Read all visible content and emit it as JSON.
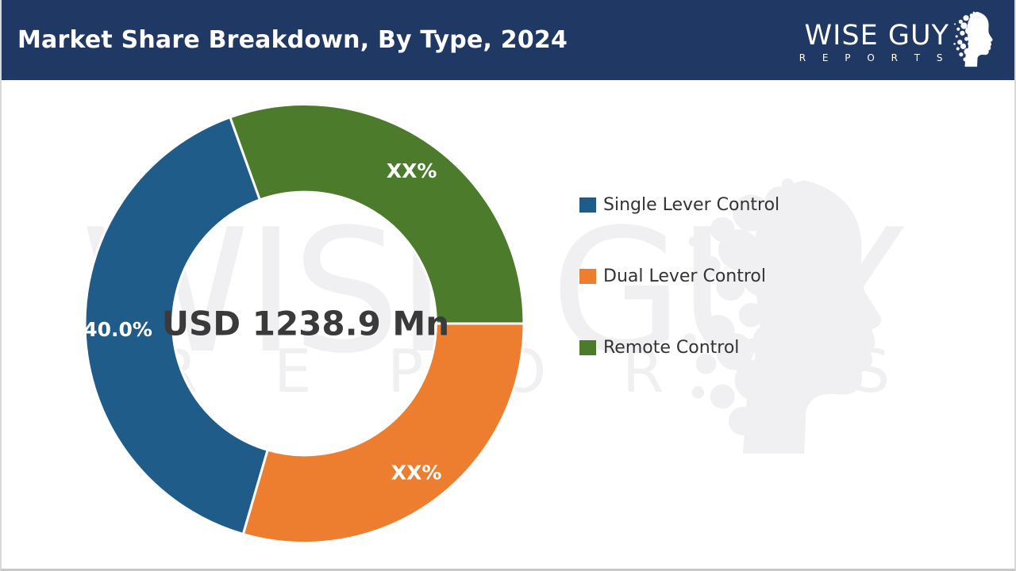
{
  "header": {
    "title": "Market Share Breakdown, By Type, 2024",
    "bg_color": "#203864",
    "logo": {
      "line1": "WISE GUY",
      "line2": "R E P O R T S",
      "face_icon": "face-profile-dots"
    }
  },
  "watermark": {
    "line1": "WISE GUY",
    "line2": "R E P O R T S",
    "color": "#f0f0f2"
  },
  "chart_data": {
    "type": "pie",
    "subtype": "donut",
    "center_label": "USD 1238.9 Mn",
    "start_angle_deg": 0,
    "direction": "counterclockwise",
    "inner_radius_ratio": 0.6,
    "label_radius_ratio": 0.85,
    "segments": [
      {
        "label": "Remote Control",
        "value": 30.5,
        "display_pct": "XX%",
        "color": "#4b7b2b"
      },
      {
        "label": "Single Lever Control",
        "value": 40.0,
        "display_pct": "40.0%",
        "color": "#205c8a"
      },
      {
        "label": "Dual Lever Control",
        "value": 29.5,
        "display_pct": "XX%",
        "color": "#ed7d2f"
      }
    ],
    "legend": [
      {
        "label": "Single Lever Control",
        "color": "#205c8a"
      },
      {
        "label": "Dual Lever Control",
        "color": "#ed7d2f"
      },
      {
        "label": "Remote Control",
        "color": "#4b7b2b"
      }
    ],
    "legend_position": "right",
    "slice_border_color": "#ffffff"
  },
  "colors": {
    "header_bg": "#203864",
    "page_bg": "#ffffff",
    "center_text": "#3a3a3a",
    "legend_text": "#333333",
    "frame_line": "#d9d9d9"
  }
}
